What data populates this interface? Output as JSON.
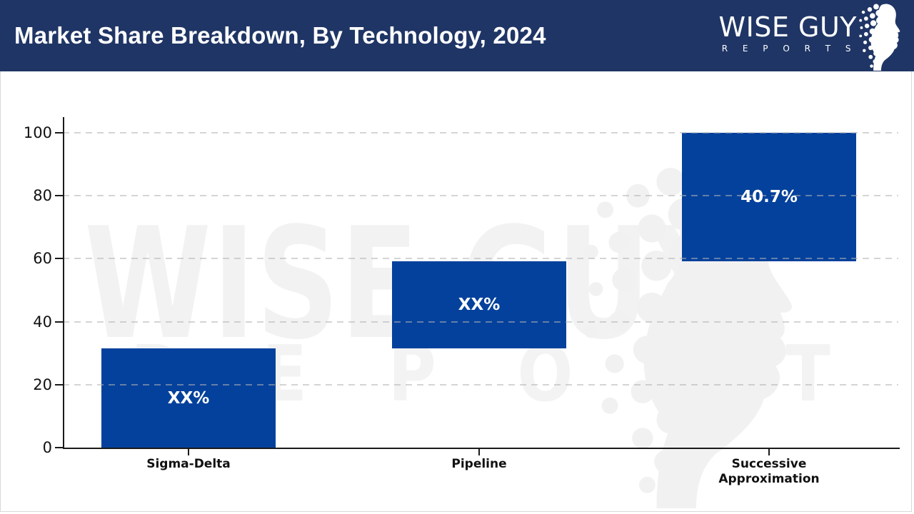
{
  "header": {
    "title": "Market Share Breakdown, By Technology, 2024",
    "bg_color": "#1f3565",
    "logo": {
      "line1": "WISE GUY",
      "line2": "R E P O R T S"
    }
  },
  "watermark": {
    "line1": "WISE GUY",
    "line2": "R E P O R T S"
  },
  "chart_data": {
    "type": "bar",
    "subtype": "waterfall-floating-bars",
    "title": "Market Share Breakdown, By Technology, 2024",
    "categories": [
      "Sigma-Delta",
      "Pipeline",
      "Successive Approximation"
    ],
    "series": [
      {
        "name": "Sigma-Delta",
        "start": 0,
        "end": 31.5,
        "label": "XX%"
      },
      {
        "name": "Pipeline",
        "start": 31.5,
        "end": 59.2,
        "label": "XX%"
      },
      {
        "name": "Successive Approximation",
        "start": 59.2,
        "end": 99.9,
        "label": "40.7%"
      }
    ],
    "yticks": [
      0,
      20,
      40,
      60,
      80,
      100
    ],
    "ylim": [
      0,
      105
    ],
    "xlabel": "",
    "ylabel": "",
    "grid": true,
    "grid_style": "dashed",
    "bar_color": "#04419c",
    "bar_label_color": "#ffffff",
    "axis_color": "#1a1a1a",
    "legend": "none"
  }
}
